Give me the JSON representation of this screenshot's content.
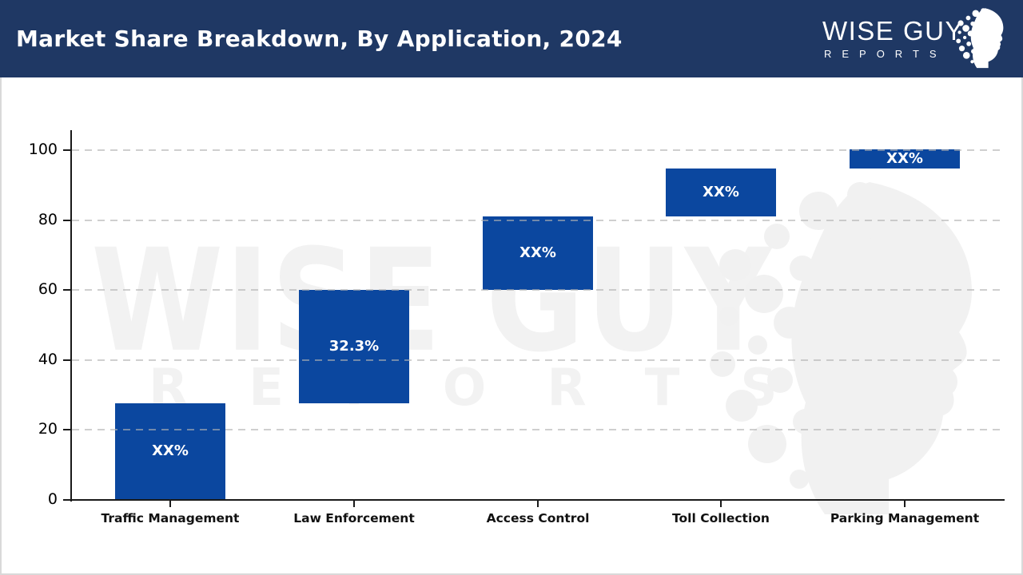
{
  "header": {
    "title": "Market Share Breakdown, By Application, 2024",
    "logo": {
      "name": "WISE GUY",
      "tagline": "REPORTS"
    }
  },
  "watermark": {
    "name": "WISE GUY",
    "tagline": "REPORTS"
  },
  "colors": {
    "header_bg": "#1f3864",
    "bar": "#0b479f",
    "bar_label": "#ffffff",
    "grid": "#b2b2b2",
    "axis": "#1a1a1a",
    "watermark": "#f2f2f2"
  },
  "chart_data": {
    "type": "bar",
    "subtype": "waterfall",
    "title": "Market Share Breakdown, By Application, 2024",
    "categories": [
      "Traffic Management",
      "Law Enforcement",
      "Access Control",
      "Toll Collection",
      "Parking Management"
    ],
    "bars": [
      {
        "category": "Traffic Management",
        "start": 0,
        "end": 27.7,
        "label": "XX%"
      },
      {
        "category": "Law Enforcement",
        "start": 27.7,
        "end": 60,
        "label": "32.3%"
      },
      {
        "category": "Access Control",
        "start": 60,
        "end": 81,
        "label": "XX%"
      },
      {
        "category": "Toll Collection",
        "start": 81,
        "end": 94.7,
        "label": "XX%"
      },
      {
        "category": "Parking Management",
        "start": 94.7,
        "end": 100.3,
        "label": "XX%"
      }
    ],
    "xlabel": "",
    "ylabel": "",
    "yticks": [
      0,
      20,
      40,
      60,
      80,
      100
    ],
    "ylim": [
      0,
      105.7
    ],
    "grid": "horizontal-dashed",
    "legend": "none"
  }
}
